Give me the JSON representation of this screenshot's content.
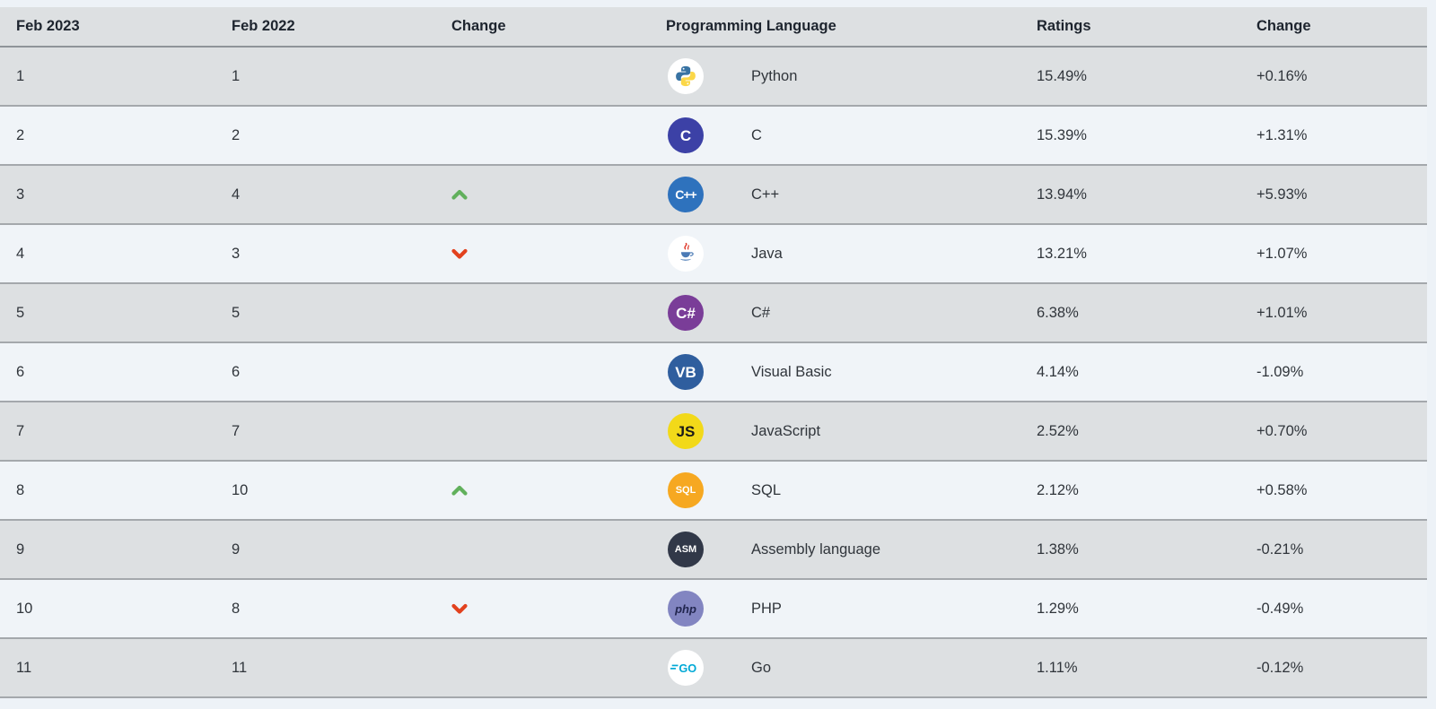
{
  "page": {
    "background_color": "#edf2f7"
  },
  "colors": {
    "header_bg": "#dde0e2",
    "row_odd_bg": "#dde0e2",
    "row_even_bg": "#f0f4f8",
    "separator": "#a4a8ac",
    "header_text": "#1d242e",
    "body_text": "#30353b",
    "trend_up": "#61b05c",
    "trend_down": "#e2411e"
  },
  "table": {
    "columns": [
      {
        "id": "rank_now",
        "label": "Feb 2023"
      },
      {
        "id": "rank_prev",
        "label": "Feb 2022"
      },
      {
        "id": "trend",
        "label": "Change"
      },
      {
        "id": "language",
        "label": "Programming Language"
      },
      {
        "id": "ratings",
        "label": "Ratings"
      },
      {
        "id": "change",
        "label": "Change"
      }
    ],
    "rows": [
      {
        "rank_now": "1",
        "rank_prev": "1",
        "trend": "none",
        "language": "Python",
        "ratings": "15.49%",
        "change": "+0.16%",
        "icon": {
          "name": "python-icon",
          "type": "python",
          "bg": "#ffffff",
          "fg": "",
          "text": ""
        }
      },
      {
        "rank_now": "2",
        "rank_prev": "2",
        "trend": "none",
        "language": "C",
        "ratings": "15.39%",
        "change": "+1.31%",
        "icon": {
          "name": "c-icon",
          "type": "text",
          "bg": "#3c41a6",
          "fg": "#ffffff",
          "text": "C"
        }
      },
      {
        "rank_now": "3",
        "rank_prev": "4",
        "trend": "up",
        "language": "C++",
        "ratings": "13.94%",
        "change": "+5.93%",
        "icon": {
          "name": "cpp-icon",
          "type": "text",
          "bg": "#2e72bd",
          "fg": "#ffffff",
          "text": "C++"
        }
      },
      {
        "rank_now": "4",
        "rank_prev": "3",
        "trend": "down",
        "language": "Java",
        "ratings": "13.21%",
        "change": "+1.07%",
        "icon": {
          "name": "java-icon",
          "type": "java",
          "bg": "#ffffff",
          "fg": "",
          "text": ""
        }
      },
      {
        "rank_now": "5",
        "rank_prev": "5",
        "trend": "none",
        "language": "C#",
        "ratings": "6.38%",
        "change": "+1.01%",
        "icon": {
          "name": "csharp-icon",
          "type": "text",
          "bg": "#7a3d98",
          "fg": "#ffffff",
          "text": "C#"
        }
      },
      {
        "rank_now": "6",
        "rank_prev": "6",
        "trend": "none",
        "language": "Visual Basic",
        "ratings": "4.14%",
        "change": "-1.09%",
        "icon": {
          "name": "visual-basic-icon",
          "type": "text",
          "bg": "#2f5e9e",
          "fg": "#ffffff",
          "text": "VB"
        }
      },
      {
        "rank_now": "7",
        "rank_prev": "7",
        "trend": "none",
        "language": "JavaScript",
        "ratings": "2.52%",
        "change": "+0.70%",
        "icon": {
          "name": "javascript-icon",
          "type": "text",
          "bg": "#f2d919",
          "fg": "#1a1a1a",
          "text": "JS"
        }
      },
      {
        "rank_now": "8",
        "rank_prev": "10",
        "trend": "up",
        "language": "SQL",
        "ratings": "2.12%",
        "change": "+0.58%",
        "icon": {
          "name": "sql-icon",
          "type": "text",
          "bg": "#f6a821",
          "fg": "#ffffff",
          "text": "SQL"
        }
      },
      {
        "rank_now": "9",
        "rank_prev": "9",
        "trend": "none",
        "language": "Assembly language",
        "ratings": "1.38%",
        "change": "-0.21%",
        "icon": {
          "name": "assembly-icon",
          "type": "text",
          "bg": "#313848",
          "fg": "#ffffff",
          "text": "ASM"
        }
      },
      {
        "rank_now": "10",
        "rank_prev": "8",
        "trend": "down",
        "language": "PHP",
        "ratings": "1.29%",
        "change": "-0.49%",
        "icon": {
          "name": "php-icon",
          "type": "text-italic",
          "bg": "#8285c1",
          "fg": "#22264f",
          "text": "php"
        }
      },
      {
        "rank_now": "11",
        "rank_prev": "11",
        "trend": "none",
        "language": "Go",
        "ratings": "1.11%",
        "change": "-0.12%",
        "icon": {
          "name": "go-icon",
          "type": "go",
          "bg": "#ffffff",
          "fg": "#00a9d6",
          "text": "GO"
        }
      }
    ]
  }
}
